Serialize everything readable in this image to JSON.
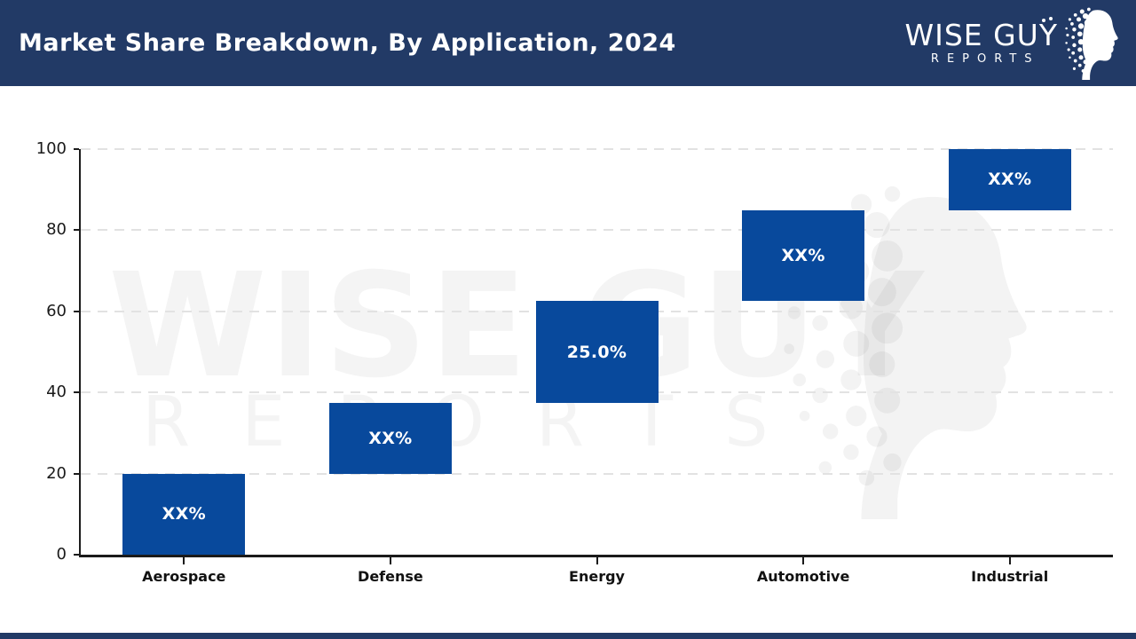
{
  "header": {
    "title": "Market Share Breakdown, By Application, 2024",
    "logo": {
      "wordmark": "WISE GUY",
      "subtext": "REPORTS"
    }
  },
  "watermark": {
    "wordmark": "WISE GUY",
    "subtext": "REPORTS"
  },
  "chart_data": {
    "type": "waterfall",
    "title": "Market Share Breakdown, By Application, 2024",
    "categories": [
      "Aerospace",
      "Defense",
      "Energy",
      "Automotive",
      "Industrial"
    ],
    "segments": [
      {
        "category": "Aerospace",
        "start": 0,
        "end": 20,
        "label": "XX%"
      },
      {
        "category": "Defense",
        "start": 20,
        "end": 37.5,
        "label": "XX%"
      },
      {
        "category": "Energy",
        "start": 37.5,
        "end": 62.5,
        "label": "25.0%"
      },
      {
        "category": "Automotive",
        "start": 62.5,
        "end": 85,
        "label": "XX%"
      },
      {
        "category": "Industrial",
        "start": 85,
        "end": 100,
        "label": "XX%"
      }
    ],
    "ylim": [
      0,
      100
    ],
    "yticks": [
      0,
      20,
      40,
      60,
      80,
      100
    ],
    "grid": "dashed-horizontal",
    "legend": "none",
    "bar_color": "#08499c",
    "bar_label_color": "#ffffff"
  },
  "colors": {
    "header_bg": "#223a66",
    "footer_bg": "#223a66",
    "bar": "#08499c",
    "grid": "#e2e2e2",
    "axis": "#1a1a1a"
  }
}
